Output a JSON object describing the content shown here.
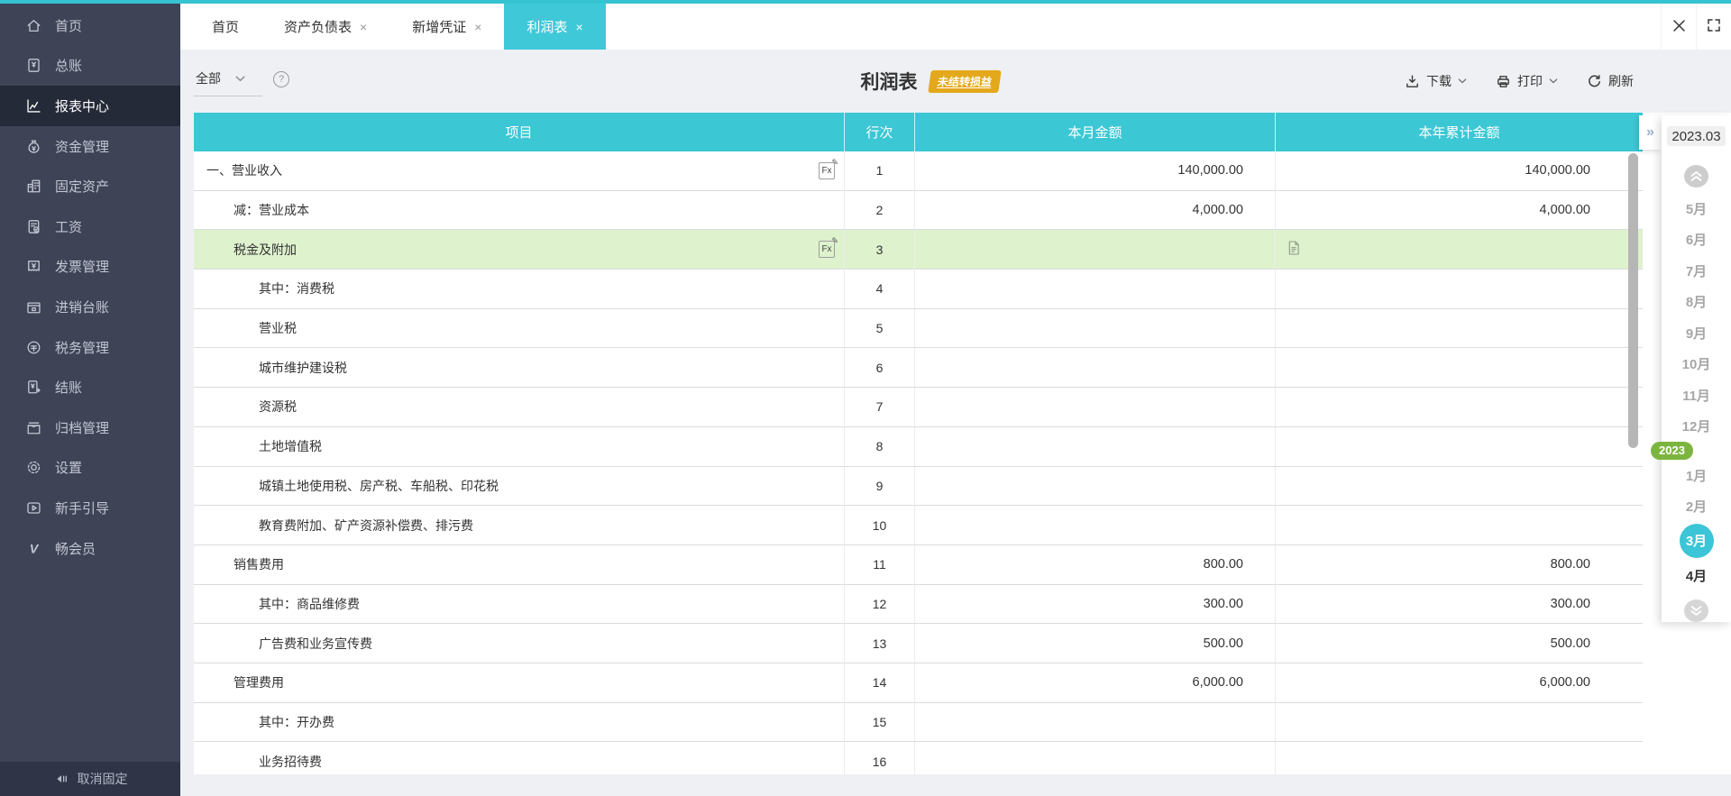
{
  "icons": {
    "close": "×",
    "double_chevron_right": "»",
    "help": "?",
    "formula": "Fx"
  },
  "window": {
    "tabs": [
      {
        "label": "首页",
        "closable": false,
        "active": false
      },
      {
        "label": "资产负债表",
        "closable": true,
        "active": false
      },
      {
        "label": "新增凭证",
        "closable": true,
        "active": false
      },
      {
        "label": "利润表",
        "closable": true,
        "active": true
      }
    ]
  },
  "sidebar": {
    "active_index": 2,
    "items": [
      {
        "label": "首页",
        "icon": "home-icon"
      },
      {
        "label": "总账",
        "icon": "ledger-icon"
      },
      {
        "label": "报表中心",
        "icon": "report-center-icon"
      },
      {
        "label": "资金管理",
        "icon": "funds-icon"
      },
      {
        "label": "固定资产",
        "icon": "fixed-assets-icon"
      },
      {
        "label": "工资",
        "icon": "salary-icon"
      },
      {
        "label": "发票管理",
        "icon": "invoice-icon"
      },
      {
        "label": "进销台账",
        "icon": "inventory-ledger-icon"
      },
      {
        "label": "税务管理",
        "icon": "tax-icon"
      },
      {
        "label": "结账",
        "icon": "closing-icon"
      },
      {
        "label": "归档管理",
        "icon": "archive-icon"
      },
      {
        "label": "设置",
        "icon": "settings-icon"
      },
      {
        "label": "新手引导",
        "icon": "guide-icon"
      },
      {
        "label": "畅会员",
        "icon": "member-icon"
      }
    ],
    "unpin_label": "取消固定"
  },
  "toolbar": {
    "scope_select": {
      "value": "全部"
    },
    "title": "利润表",
    "badge": "未结转损益",
    "download_label": "下载",
    "print_label": "打印",
    "refresh_label": "刷新"
  },
  "report_table": {
    "columns": [
      "项目",
      "行次",
      "本月金额",
      "本年累计金额"
    ],
    "rows": [
      {
        "item": "一、营业收入",
        "indent": 0,
        "fx": true,
        "doc": false,
        "highlight": false,
        "line": "1",
        "month": "140,000.00",
        "ytd": "140,000.00"
      },
      {
        "item": "减：营业成本",
        "indent": 1,
        "fx": false,
        "doc": false,
        "highlight": false,
        "line": "2",
        "month": "4,000.00",
        "ytd": "4,000.00"
      },
      {
        "item": "税金及附加",
        "indent": 1,
        "fx": true,
        "doc": true,
        "highlight": true,
        "line": "3",
        "month": "",
        "ytd": ""
      },
      {
        "item": "其中：消费税",
        "indent": 2,
        "fx": false,
        "doc": false,
        "highlight": false,
        "line": "4",
        "month": "",
        "ytd": ""
      },
      {
        "item": "营业税",
        "indent": 2,
        "fx": false,
        "doc": false,
        "highlight": false,
        "line": "5",
        "month": "",
        "ytd": ""
      },
      {
        "item": "城市维护建设税",
        "indent": 2,
        "fx": false,
        "doc": false,
        "highlight": false,
        "line": "6",
        "month": "",
        "ytd": ""
      },
      {
        "item": "资源税",
        "indent": 2,
        "fx": false,
        "doc": false,
        "highlight": false,
        "line": "7",
        "month": "",
        "ytd": ""
      },
      {
        "item": "土地增值税",
        "indent": 2,
        "fx": false,
        "doc": false,
        "highlight": false,
        "line": "8",
        "month": "",
        "ytd": ""
      },
      {
        "item": "城镇土地使用税、房产税、车船税、印花税",
        "indent": 2,
        "fx": false,
        "doc": false,
        "highlight": false,
        "line": "9",
        "month": "",
        "ytd": ""
      },
      {
        "item": "教育费附加、矿产资源补偿费、排污费",
        "indent": 2,
        "fx": false,
        "doc": false,
        "highlight": false,
        "line": "10",
        "month": "",
        "ytd": ""
      },
      {
        "item": "销售费用",
        "indent": 1,
        "fx": false,
        "doc": false,
        "highlight": false,
        "line": "11",
        "month": "800.00",
        "ytd": "800.00"
      },
      {
        "item": "其中：商品维修费",
        "indent": 2,
        "fx": false,
        "doc": false,
        "highlight": false,
        "line": "12",
        "month": "300.00",
        "ytd": "300.00"
      },
      {
        "item": "广告费和业务宣传费",
        "indent": 2,
        "fx": false,
        "doc": false,
        "highlight": false,
        "line": "13",
        "month": "500.00",
        "ytd": "500.00"
      },
      {
        "item": "管理费用",
        "indent": 1,
        "fx": false,
        "doc": false,
        "highlight": false,
        "line": "14",
        "month": "6,000.00",
        "ytd": "6,000.00"
      },
      {
        "item": "其中：开办费",
        "indent": 2,
        "fx": false,
        "doc": false,
        "highlight": false,
        "line": "15",
        "month": "",
        "ytd": ""
      },
      {
        "item": "业务招待费",
        "indent": 2,
        "fx": false,
        "doc": false,
        "highlight": false,
        "line": "16",
        "month": "",
        "ytd": ""
      }
    ]
  },
  "period_panel": {
    "current_period": "2023.03",
    "items": [
      {
        "label": "5月",
        "type": "month"
      },
      {
        "label": "6月",
        "type": "month"
      },
      {
        "label": "7月",
        "type": "month"
      },
      {
        "label": "8月",
        "type": "month"
      },
      {
        "label": "9月",
        "type": "month"
      },
      {
        "label": "10月",
        "type": "month"
      },
      {
        "label": "11月",
        "type": "month"
      },
      {
        "label": "12月",
        "type": "month"
      },
      {
        "label": "2023",
        "type": "year-badge"
      },
      {
        "label": "1月",
        "type": "month"
      },
      {
        "label": "2月",
        "type": "month"
      },
      {
        "label": "3月",
        "type": "active"
      },
      {
        "label": "4月",
        "type": "current-adjacent"
      }
    ]
  },
  "colors": {
    "accent_cyan": "#3cc7d5",
    "highlight_row_green": "#def2cd",
    "badge_gold": "#e3a81c",
    "year_badge_green": "#7cb53e",
    "sidebar_bg": "#3e4356",
    "sidebar_active_bg": "#252a39",
    "content_bg": "#eef0f3"
  }
}
